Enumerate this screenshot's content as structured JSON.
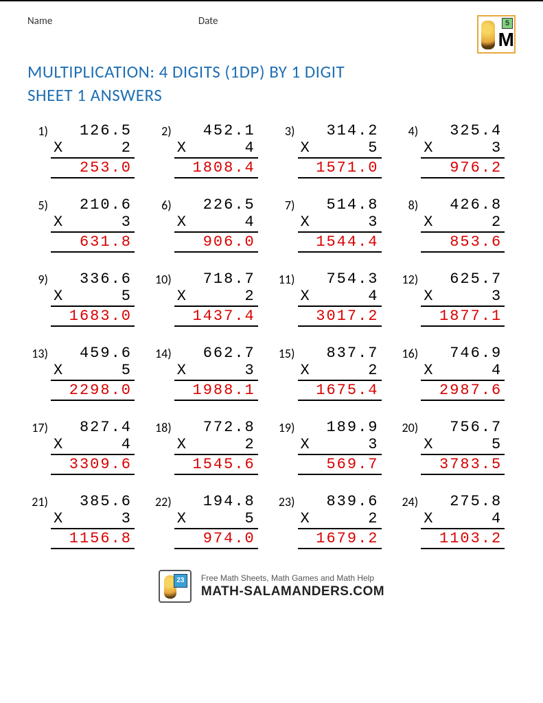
{
  "header": {
    "name_label": "Name",
    "date_label": "Date",
    "grade": "5"
  },
  "title_line1": "MULTIPLICATION: 4 DIGITS (1DP) BY 1 DIGIT",
  "title_line2": "SHEET 1 ANSWERS",
  "problems": [
    {
      "n": "1)",
      "a": "126.5",
      "b": "2",
      "ans": "253.0"
    },
    {
      "n": "2)",
      "a": "452.1",
      "b": "4",
      "ans": "1808.4"
    },
    {
      "n": "3)",
      "a": "314.2",
      "b": "5",
      "ans": "1571.0"
    },
    {
      "n": "4)",
      "a": "325.4",
      "b": "3",
      "ans": "976.2"
    },
    {
      "n": "5)",
      "a": "210.6",
      "b": "3",
      "ans": "631.8"
    },
    {
      "n": "6)",
      "a": "226.5",
      "b": "4",
      "ans": "906.0"
    },
    {
      "n": "7)",
      "a": "514.8",
      "b": "3",
      "ans": "1544.4"
    },
    {
      "n": "8)",
      "a": "426.8",
      "b": "2",
      "ans": "853.6"
    },
    {
      "n": "9)",
      "a": "336.6",
      "b": "5",
      "ans": "1683.0"
    },
    {
      "n": "10)",
      "a": "718.7",
      "b": "2",
      "ans": "1437.4"
    },
    {
      "n": "11)",
      "a": "754.3",
      "b": "4",
      "ans": "3017.2"
    },
    {
      "n": "12)",
      "a": "625.7",
      "b": "3",
      "ans": "1877.1"
    },
    {
      "n": "13)",
      "a": "459.6",
      "b": "5",
      "ans": "2298.0"
    },
    {
      "n": "14)",
      "a": "662.7",
      "b": "3",
      "ans": "1988.1"
    },
    {
      "n": "15)",
      "a": "837.7",
      "b": "2",
      "ans": "1675.4"
    },
    {
      "n": "16)",
      "a": "746.9",
      "b": "4",
      "ans": "2987.6"
    },
    {
      "n": "17)",
      "a": "827.4",
      "b": "4",
      "ans": "3309.6"
    },
    {
      "n": "18)",
      "a": "772.8",
      "b": "2",
      "ans": "1545.6"
    },
    {
      "n": "19)",
      "a": "189.9",
      "b": "3",
      "ans": "569.7"
    },
    {
      "n": "20)",
      "a": "756.7",
      "b": "5",
      "ans": "3783.5"
    },
    {
      "n": "21)",
      "a": "385.6",
      "b": "3",
      "ans": "1156.8"
    },
    {
      "n": "22)",
      "a": "194.8",
      "b": "5",
      "ans": "974.0"
    },
    {
      "n": "23)",
      "a": "839.6",
      "b": "2",
      "ans": "1679.2"
    },
    {
      "n": "24)",
      "a": "275.8",
      "b": "4",
      "ans": "1103.2"
    }
  ],
  "operator": "X",
  "footer": {
    "tagline": "Free Math Sheets, Math Games and Math Help",
    "site": "MATH-SALAMANDERS.COM",
    "logo_num": "23"
  },
  "colors": {
    "title": "#1f6fb3",
    "answer": "#d90000",
    "text": "#000000",
    "border": "#000000"
  }
}
